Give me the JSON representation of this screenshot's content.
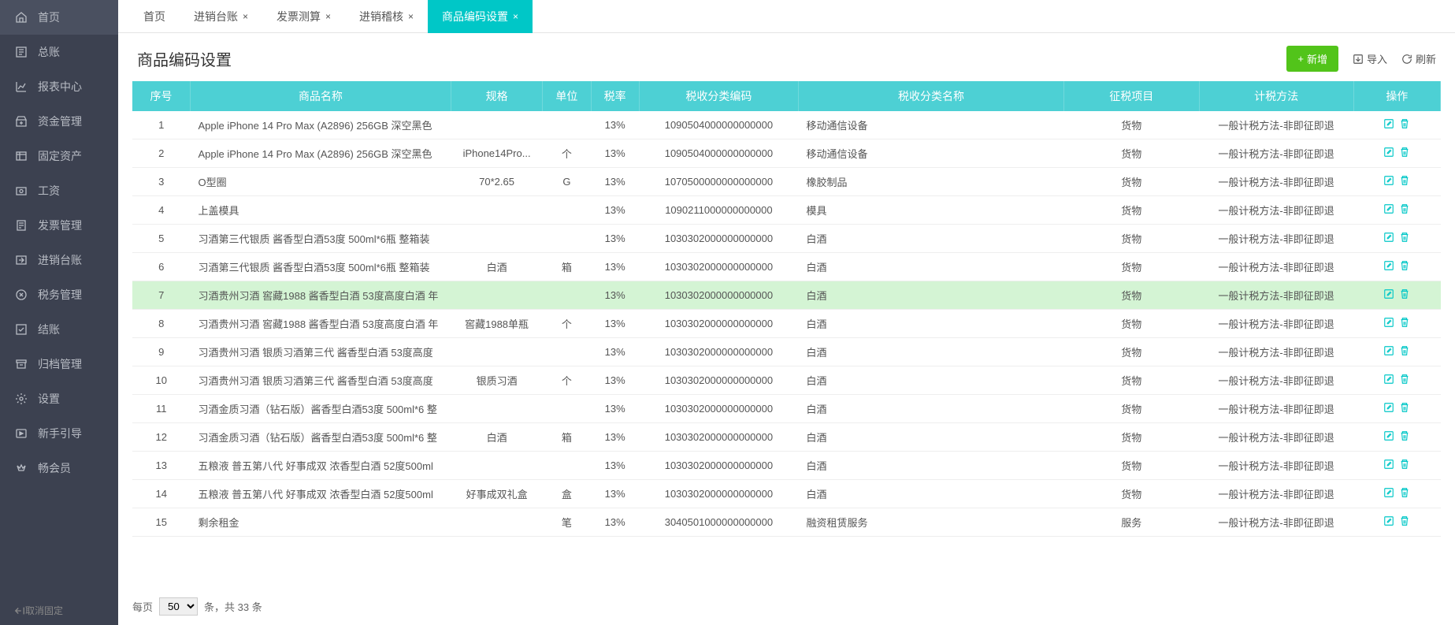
{
  "sidebar": {
    "items": [
      {
        "label": "首页",
        "icon": "home"
      },
      {
        "label": "总账",
        "icon": "ledger"
      },
      {
        "label": "报表中心",
        "icon": "chart"
      },
      {
        "label": "资金管理",
        "icon": "money"
      },
      {
        "label": "固定资产",
        "icon": "asset"
      },
      {
        "label": "工资",
        "icon": "salary"
      },
      {
        "label": "发票管理",
        "icon": "invoice"
      },
      {
        "label": "进销台账",
        "icon": "inout"
      },
      {
        "label": "税务管理",
        "icon": "tax"
      },
      {
        "label": "结账",
        "icon": "close-acc"
      },
      {
        "label": "归档管理",
        "icon": "archive"
      },
      {
        "label": "设置",
        "icon": "gear"
      },
      {
        "label": "新手引导",
        "icon": "guide"
      },
      {
        "label": "畅会员",
        "icon": "vip"
      }
    ],
    "footer": "取消固定"
  },
  "tabs": [
    {
      "label": "首页",
      "closable": false
    },
    {
      "label": "进销台账",
      "closable": true
    },
    {
      "label": "发票测算",
      "closable": true
    },
    {
      "label": "进销稽核",
      "closable": true
    },
    {
      "label": "商品编码设置",
      "closable": true,
      "active": true
    }
  ],
  "page": {
    "title": "商品编码设置",
    "add_label": "新增",
    "import_label": "导入",
    "refresh_label": "刷新"
  },
  "table": {
    "columns": [
      "序号",
      "商品名称",
      "规格",
      "单位",
      "税率",
      "税收分类编码",
      "税收分类名称",
      "征税项目",
      "计税方法",
      "操作"
    ],
    "rows": [
      {
        "seq": "1",
        "name": "Apple iPhone 14 Pro Max (A2896) 256GB 深空黑色",
        "spec": "",
        "unit": "",
        "rate": "13%",
        "code": "1090504000000000000",
        "catname": "移动通信设备",
        "item": "货物",
        "method": "一般计税方法-非即征即退"
      },
      {
        "seq": "2",
        "name": "Apple iPhone 14 Pro Max (A2896) 256GB 深空黑色",
        "spec": "iPhone14Pro...",
        "unit": "个",
        "rate": "13%",
        "code": "1090504000000000000",
        "catname": "移动通信设备",
        "item": "货物",
        "method": "一般计税方法-非即征即退"
      },
      {
        "seq": "3",
        "name": "O型圈",
        "spec": "70*2.65",
        "unit": "G",
        "rate": "13%",
        "code": "1070500000000000000",
        "catname": "橡胶制品",
        "item": "货物",
        "method": "一般计税方法-非即征即退"
      },
      {
        "seq": "4",
        "name": "上盖模具",
        "spec": "",
        "unit": "",
        "rate": "13%",
        "code": "1090211000000000000",
        "catname": "模具",
        "item": "货物",
        "method": "一般计税方法-非即征即退"
      },
      {
        "seq": "5",
        "name": "习酒第三代银质 酱香型白酒53度 500ml*6瓶 整箱装",
        "spec": "",
        "unit": "",
        "rate": "13%",
        "code": "1030302000000000000",
        "catname": "白酒",
        "item": "货物",
        "method": "一般计税方法-非即征即退"
      },
      {
        "seq": "6",
        "name": "习酒第三代银质 酱香型白酒53度 500ml*6瓶 整箱装",
        "spec": "白酒",
        "unit": "箱",
        "rate": "13%",
        "code": "1030302000000000000",
        "catname": "白酒",
        "item": "货物",
        "method": "一般计税方法-非即征即退"
      },
      {
        "seq": "7",
        "name": "习酒贵州习酒 窖藏1988 酱香型白酒 53度高度白酒 年",
        "spec": "",
        "unit": "",
        "rate": "13%",
        "code": "1030302000000000000",
        "catname": "白酒",
        "item": "货物",
        "method": "一般计税方法-非即征即退",
        "highlight": true
      },
      {
        "seq": "8",
        "name": "习酒贵州习酒 窖藏1988 酱香型白酒 53度高度白酒 年",
        "spec": "窖藏1988单瓶",
        "unit": "个",
        "rate": "13%",
        "code": "1030302000000000000",
        "catname": "白酒",
        "item": "货物",
        "method": "一般计税方法-非即征即退"
      },
      {
        "seq": "9",
        "name": "习酒贵州习酒 银质习酒第三代 酱香型白酒 53度高度",
        "spec": "",
        "unit": "",
        "rate": "13%",
        "code": "1030302000000000000",
        "catname": "白酒",
        "item": "货物",
        "method": "一般计税方法-非即征即退"
      },
      {
        "seq": "10",
        "name": "习酒贵州习酒 银质习酒第三代 酱香型白酒 53度高度",
        "spec": "银质习酒",
        "unit": "个",
        "rate": "13%",
        "code": "1030302000000000000",
        "catname": "白酒",
        "item": "货物",
        "method": "一般计税方法-非即征即退"
      },
      {
        "seq": "11",
        "name": "习酒金质习酒（钻石版）酱香型白酒53度 500ml*6 整",
        "spec": "",
        "unit": "",
        "rate": "13%",
        "code": "1030302000000000000",
        "catname": "白酒",
        "item": "货物",
        "method": "一般计税方法-非即征即退"
      },
      {
        "seq": "12",
        "name": "习酒金质习酒（钻石版）酱香型白酒53度 500ml*6 整",
        "spec": "白酒",
        "unit": "箱",
        "rate": "13%",
        "code": "1030302000000000000",
        "catname": "白酒",
        "item": "货物",
        "method": "一般计税方法-非即征即退"
      },
      {
        "seq": "13",
        "name": "五粮液 普五第八代 好事成双 浓香型白酒 52度500ml",
        "spec": "",
        "unit": "",
        "rate": "13%",
        "code": "1030302000000000000",
        "catname": "白酒",
        "item": "货物",
        "method": "一般计税方法-非即征即退"
      },
      {
        "seq": "14",
        "name": "五粮液 普五第八代 好事成双 浓香型白酒 52度500ml",
        "spec": "好事成双礼盒",
        "unit": "盒",
        "rate": "13%",
        "code": "1030302000000000000",
        "catname": "白酒",
        "item": "货物",
        "method": "一般计税方法-非即征即退"
      },
      {
        "seq": "15",
        "name": "剩余租金",
        "spec": "",
        "unit": "笔",
        "rate": "13%",
        "code": "3040501000000000000",
        "catname": "融资租赁服务",
        "item": "服务",
        "method": "一般计税方法-非即征即退"
      }
    ]
  },
  "pager": {
    "per_label": "每页",
    "per_value": "50",
    "unit_label": "条，共",
    "total": "33",
    "total_unit": "条"
  },
  "colors": {
    "sidebar_bg": "#3c4150",
    "primary": "#00c7c7",
    "table_header": "#4dd0d4",
    "add_btn": "#52c41a",
    "highlight_row": "#d4f4d4"
  }
}
